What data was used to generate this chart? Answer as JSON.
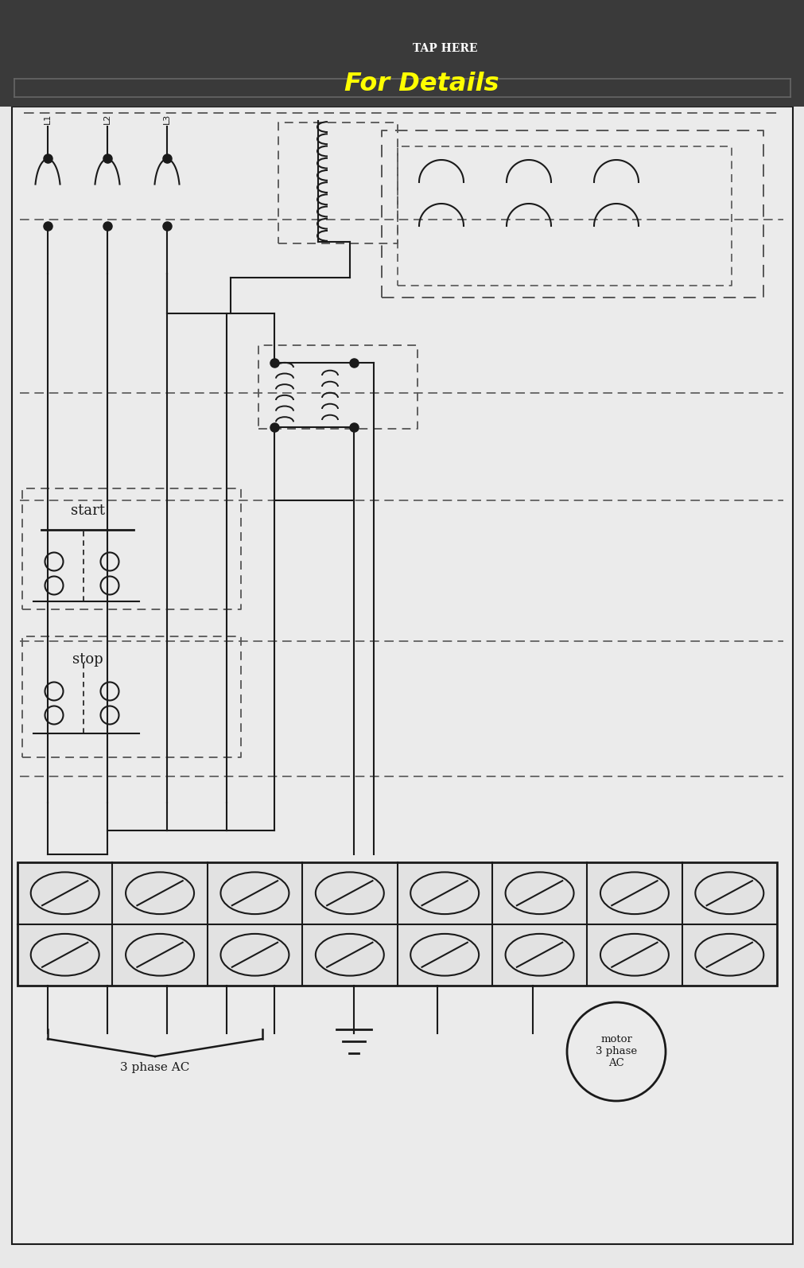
{
  "bg_color": "#e8e8e8",
  "header_color": "#3a3a3a",
  "line_color": "#1a1a1a",
  "dashed_color": "#555555",
  "tap_here_color": "#ffffff",
  "for_details_color": "#ffff00",
  "title_tap": "TAP HERE",
  "title_details": "For Details",
  "label_start": "start",
  "label_stop": "stop",
  "label_motor": "motor\n3 phase\nAC",
  "label_3phase": "3 phase AC",
  "figsize": [
    10.12,
    15.94
  ],
  "dpi": 100
}
